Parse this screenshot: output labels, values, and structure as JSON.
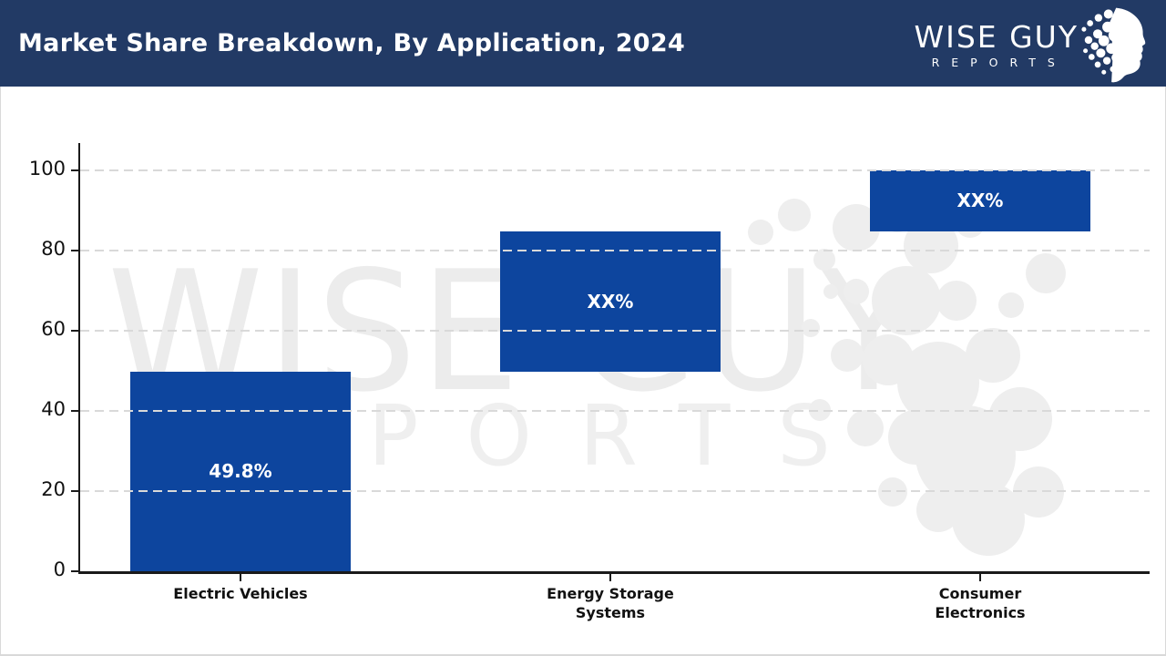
{
  "header": {
    "title": "Market Share Breakdown, By Application, 2024",
    "bg_color": "#223A65",
    "logo": {
      "line1": "WISE GUY",
      "line2": "REPORTS"
    }
  },
  "watermark": {
    "line1": "WISE GUY",
    "line2": "REPORTS"
  },
  "chart_data": {
    "type": "bar",
    "variant": "floating-waterfall",
    "title": "Market Share Breakdown, By Application, 2024",
    "categories": [
      [
        "Electric Vehicles"
      ],
      [
        "Energy Storage",
        "Systems"
      ],
      [
        "Consumer",
        "Electronics"
      ]
    ],
    "segments": [
      {
        "category": "Electric Vehicles",
        "start": 0,
        "end": 49.8,
        "value": 49.8,
        "value_label": "49.8%"
      },
      {
        "category": "Energy Storage Systems",
        "start": 49.8,
        "end": 84.8,
        "value": 35.0,
        "value_label": "XX%"
      },
      {
        "category": "Consumer Electronics",
        "start": 84.8,
        "end": 100,
        "value": 15.2,
        "value_label": "XX%"
      }
    ],
    "ylim": [
      0,
      100
    ],
    "yticks": [
      0,
      20,
      40,
      60,
      80,
      100
    ],
    "xlabel": "",
    "ylabel": "",
    "grid": {
      "axis": "y",
      "style": "dashed",
      "color": "#d9d9d9",
      "drawn_over_bars": true
    },
    "legend": "none",
    "bar_color": "#0D459E",
    "bar_label_color": "#ffffff",
    "axis_color": "#1a1a1a",
    "tick_label_color": "#111111"
  }
}
